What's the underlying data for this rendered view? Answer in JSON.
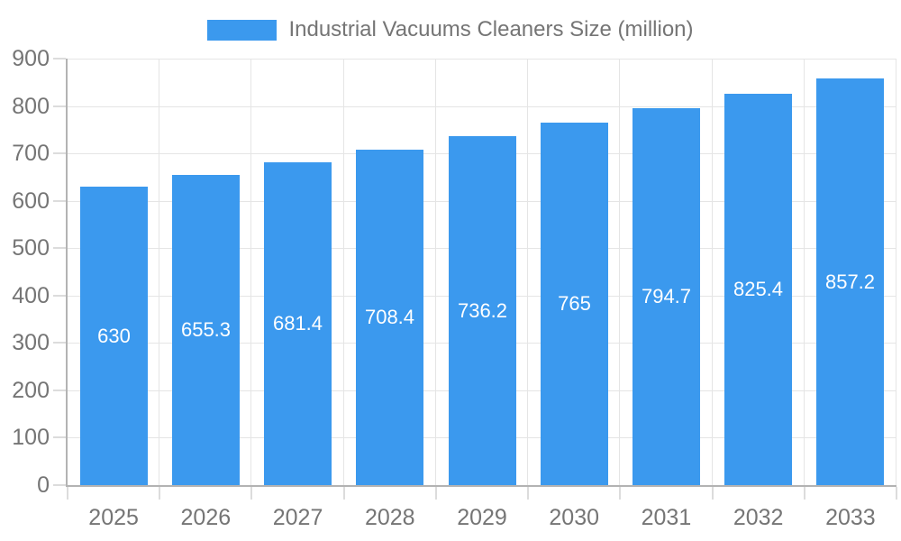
{
  "chart_data": {
    "type": "bar",
    "title": "Industrial Vacuums Cleaners Size (million)",
    "legend": {
      "label": "Industrial Vacuums Cleaners Size (million)",
      "position": "top-center"
    },
    "categories": [
      "2025",
      "2026",
      "2027",
      "2028",
      "2029",
      "2030",
      "2031",
      "2032",
      "2033"
    ],
    "values": [
      630,
      655.3,
      681.4,
      708.4,
      736.2,
      765,
      794.7,
      825.4,
      857.2
    ],
    "xlabel": "",
    "ylabel": "",
    "ylim": [
      0,
      900
    ],
    "y_ticks": [
      0,
      100,
      200,
      300,
      400,
      500,
      600,
      700,
      800,
      900
    ],
    "grid": true,
    "value_labels_visible": true,
    "colors": {
      "bar": "#3b99ee",
      "axis": "#b3b3b3",
      "grid": "#e5e5e5",
      "tick": "#dcdcdc",
      "axis_label": "#757575",
      "legend_label": "#757575",
      "value_label": "#ffffff",
      "background": "#ffffff"
    }
  }
}
